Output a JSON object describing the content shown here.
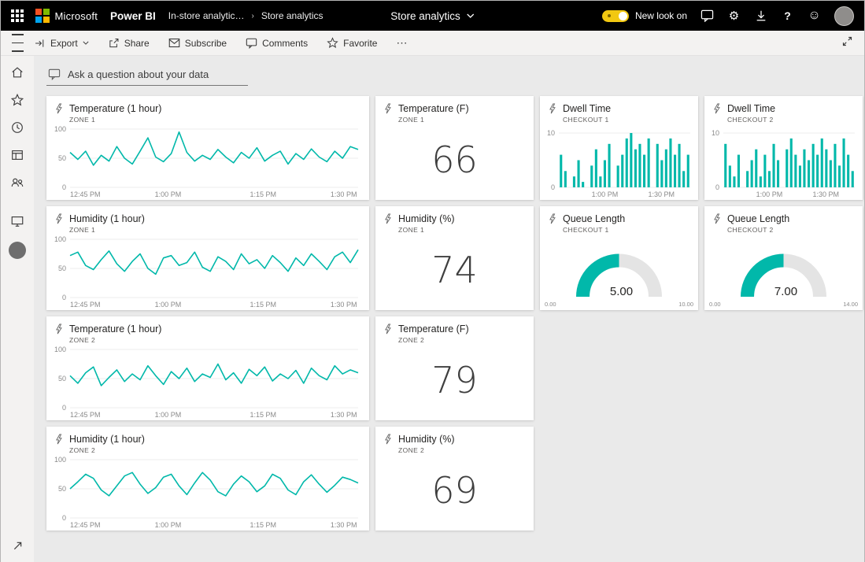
{
  "colors": {
    "teal": "#01B8AA",
    "yellow": "#F2C811"
  },
  "header": {
    "microsoft": "Microsoft",
    "app": "Power BI",
    "breadcrumb_parent": "In-store analytic…",
    "breadcrumb_sep": "›",
    "breadcrumb_current": "Store analytics",
    "center_title": "Store analytics",
    "new_look_label": "New look on",
    "gear_glyph": "⚙",
    "help_glyph": "?",
    "smiley_glyph": "☺"
  },
  "toolbar": {
    "export": "Export",
    "share": "Share",
    "subscribe": "Subscribe",
    "comments": "Comments",
    "favorite": "Favorite",
    "more": "⋯"
  },
  "qa": {
    "placeholder": "Ask a question about your data"
  },
  "tiles": [
    {
      "type": "line",
      "title": "Temperature (1 hour)",
      "subtitle": "ZONE 1",
      "ylim": [
        0,
        100
      ],
      "yticks": [
        0,
        50,
        100
      ],
      "xticks": [
        "12:45 PM",
        "1:00 PM",
        "1:15 PM",
        "1:30 PM"
      ],
      "xfracs": [
        0.0,
        0.34,
        0.67,
        0.95
      ],
      "values": [
        60,
        48,
        62,
        38,
        55,
        45,
        70,
        50,
        40,
        62,
        85,
        52,
        44,
        58,
        95,
        60,
        45,
        55,
        48,
        65,
        52,
        42,
        60,
        50,
        68,
        45,
        55,
        62,
        40,
        58,
        48,
        66,
        52,
        44,
        62,
        50,
        70,
        65
      ]
    },
    {
      "type": "card",
      "title": "Temperature (F)",
      "subtitle": "ZONE 1",
      "value": "66"
    },
    {
      "type": "bar",
      "title": "Dwell Time",
      "subtitle": "CHECKOUT 1",
      "ylim": [
        0,
        10
      ],
      "yticks": [
        0,
        10
      ],
      "xticks": [
        "1:00 PM",
        "1:30 PM"
      ],
      "xfracs": [
        0.35,
        0.78
      ],
      "values": [
        6,
        3,
        0,
        2,
        5,
        1,
        0,
        4,
        7,
        2,
        5,
        8,
        0,
        4,
        6,
        9,
        10,
        7,
        8,
        6,
        9,
        0,
        8,
        5,
        7,
        9,
        6,
        8,
        3,
        6
      ]
    },
    {
      "type": "bar",
      "title": "Dwell Time",
      "subtitle": "CHECKOUT 2",
      "ylim": [
        0,
        10
      ],
      "yticks": [
        0,
        10
      ],
      "xticks": [
        "1:00 PM",
        "1:30 PM"
      ],
      "xfracs": [
        0.35,
        0.78
      ],
      "values": [
        8,
        4,
        2,
        6,
        0,
        3,
        5,
        7,
        2,
        6,
        3,
        8,
        5,
        0,
        7,
        9,
        6,
        4,
        7,
        5,
        8,
        6,
        9,
        7,
        5,
        8,
        4,
        9,
        6,
        3
      ]
    },
    {
      "type": "line",
      "title": "Humidity (1 hour)",
      "subtitle": "ZONE 1",
      "ylim": [
        0,
        100
      ],
      "yticks": [
        0,
        50,
        100
      ],
      "xticks": [
        "12:45 PM",
        "1:00 PM",
        "1:15 PM",
        "1:30 PM"
      ],
      "xfracs": [
        0.0,
        0.34,
        0.67,
        0.95
      ],
      "values": [
        72,
        78,
        55,
        48,
        65,
        80,
        58,
        45,
        62,
        75,
        50,
        40,
        68,
        72,
        55,
        60,
        78,
        52,
        45,
        70,
        62,
        48,
        75,
        58,
        65,
        50,
        72,
        60,
        45,
        68,
        55,
        75,
        62,
        48,
        70,
        78,
        60,
        82
      ]
    },
    {
      "type": "card",
      "title": "Humidity (%)",
      "subtitle": "ZONE 1",
      "value": "74"
    },
    {
      "type": "gauge",
      "title": "Queue Length",
      "subtitle": "CHECKOUT 1",
      "value": "5.00",
      "min": "0.00",
      "max": "10.00",
      "fraction": 0.5
    },
    {
      "type": "gauge",
      "title": "Queue Length",
      "subtitle": "CHECKOUT 2",
      "value": "7.00",
      "min": "0.00",
      "max": "14.00",
      "fraction": 0.5
    },
    {
      "type": "line",
      "title": "Temperature (1 hour)",
      "subtitle": "ZONE 2",
      "ylim": [
        0,
        100
      ],
      "yticks": [
        0,
        50,
        100
      ],
      "xticks": [
        "12:45 PM",
        "1:00 PM",
        "1:15 PM",
        "1:30 PM"
      ],
      "xfracs": [
        0.0,
        0.34,
        0.67,
        0.95
      ],
      "values": [
        55,
        42,
        60,
        70,
        38,
        52,
        65,
        45,
        58,
        48,
        72,
        55,
        40,
        62,
        50,
        68,
        45,
        58,
        52,
        75,
        48,
        60,
        42,
        66,
        55,
        70,
        46,
        58,
        50,
        64,
        42,
        68,
        55,
        48,
        72,
        58,
        65,
        60
      ]
    },
    {
      "type": "card",
      "title": "Temperature (F)",
      "subtitle": "ZONE 2",
      "value": "79"
    },
    {
      "type": "line",
      "title": "Humidity (1 hour)",
      "subtitle": "ZONE 2",
      "ylim": [
        0,
        100
      ],
      "yticks": [
        0,
        50,
        100
      ],
      "xticks": [
        "12:45 PM",
        "1:00 PM",
        "1:15 PM",
        "1:30 PM"
      ],
      "xfracs": [
        0.0,
        0.34,
        0.67,
        0.95
      ],
      "values": [
        50,
        62,
        75,
        68,
        48,
        38,
        55,
        72,
        78,
        58,
        42,
        52,
        70,
        75,
        55,
        40,
        60,
        78,
        65,
        45,
        38,
        58,
        72,
        62,
        45,
        55,
        75,
        68,
        48,
        40,
        62,
        74,
        58,
        44,
        56,
        70,
        66,
        60
      ]
    },
    {
      "type": "card",
      "title": "Humidity (%)",
      "subtitle": "ZONE 2",
      "value": "69"
    }
  ]
}
